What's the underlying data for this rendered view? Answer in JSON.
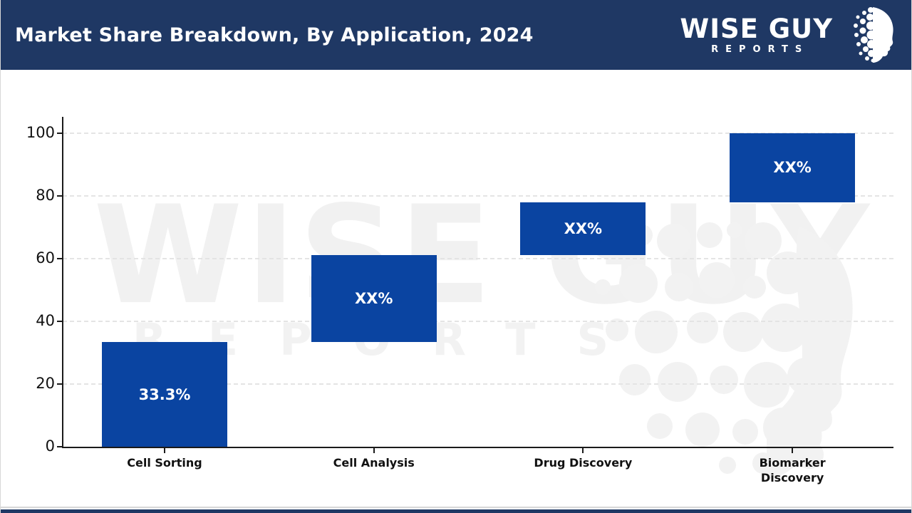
{
  "header": {
    "title": "Market Share Breakdown, By Application, 2024",
    "bg_color": "#1f3864",
    "logo": {
      "wordmark": "WISE GUY",
      "subtext": "REPORTS"
    }
  },
  "watermark": {
    "line1": "WISE GUY",
    "line2": "REPORTS"
  },
  "chart_data": {
    "type": "bar",
    "subtype": "waterfall",
    "title": "Market Share Breakdown, By Application, 2024",
    "categories": [
      "Cell Sorting",
      "Cell Analysis",
      "Drug Discovery",
      "Biomarker Discovery"
    ],
    "series": [
      {
        "name": "Market share",
        "segments": [
          {
            "category": "Cell Sorting",
            "start": 0,
            "end": 33.3,
            "label": "33.3%"
          },
          {
            "category": "Cell Analysis",
            "start": 33.3,
            "end": 61.1,
            "label": "XX%"
          },
          {
            "category": "Drug Discovery",
            "start": 61.1,
            "end": 78.0,
            "label": "XX%"
          },
          {
            "category": "Biomarker Discovery",
            "start": 78.0,
            "end": 100.0,
            "label": "XX%"
          }
        ]
      }
    ],
    "xlabel": "",
    "ylabel": "",
    "y_ticks": [
      0,
      20,
      40,
      60,
      80,
      100
    ],
    "ylim": [
      0,
      105
    ],
    "grid": "horizontal-dashed",
    "legend": "none",
    "colors": {
      "bar": "#0a44a1",
      "header_bg": "#1f3864",
      "grid": "#e4e4e4",
      "axis": "#1a1a1a",
      "watermark": "#f1f1f1"
    }
  }
}
